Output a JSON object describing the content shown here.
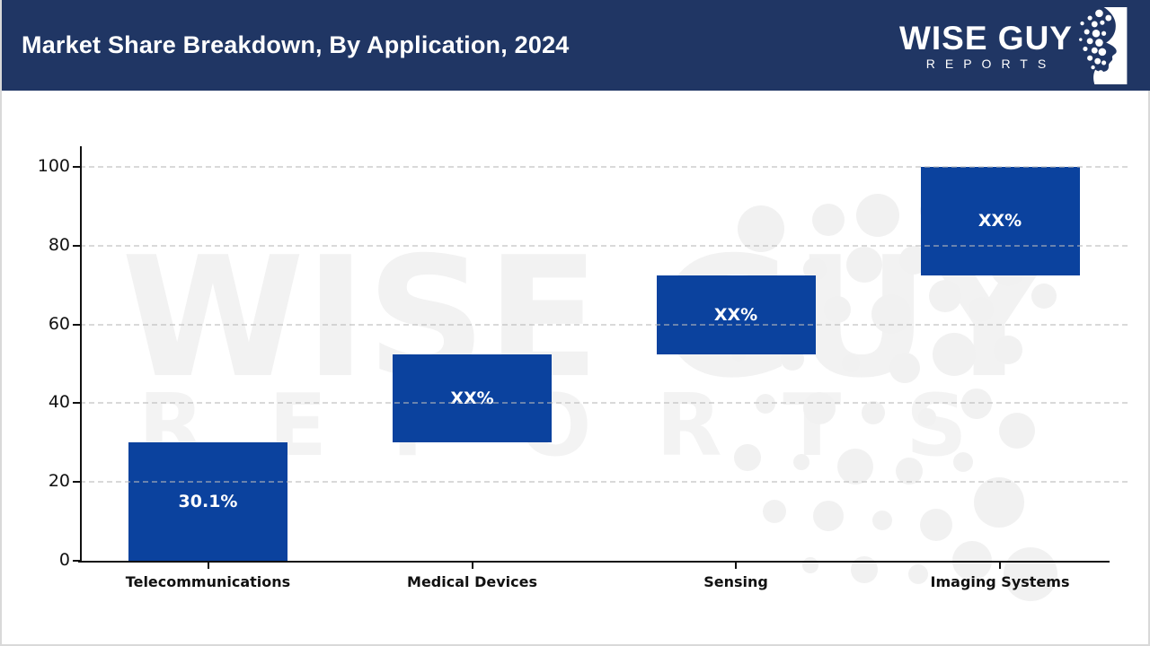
{
  "header": {
    "title": "Market Share Breakdown, By Application, 2024",
    "logo": {
      "line1": "WISE GUY",
      "line2": "REPORTS"
    },
    "bg_color": "#203664"
  },
  "watermark": {
    "line1": "WISE GUY",
    "line2": "REPORTS"
  },
  "chart_data": {
    "type": "bar",
    "subtype": "waterfall",
    "title": "Market Share Breakdown, By Application, 2024",
    "categories": [
      "Telecommunications",
      "Medical Devices",
      "Sensing",
      "Imaging Systems"
    ],
    "segments": [
      {
        "category": "Telecommunications",
        "start": 0,
        "end": 30.1,
        "label": "30.1%"
      },
      {
        "category": "Medical Devices",
        "start": 30.1,
        "end": 52.5,
        "label": "XX%"
      },
      {
        "category": "Sensing",
        "start": 52.5,
        "end": 72.5,
        "label": "XX%"
      },
      {
        "category": "Imaging Systems",
        "start": 72.5,
        "end": 100,
        "label": "XX%"
      }
    ],
    "values_shown": [
      "30.1%",
      "XX%",
      "XX%",
      "XX%"
    ],
    "yticks": [
      0,
      20,
      40,
      60,
      80,
      100
    ],
    "ylim": [
      0,
      105
    ],
    "xlabel": "",
    "ylabel": "",
    "bar_color": "#0b429e",
    "grid": "horizontal-dashed",
    "legend": "none"
  }
}
